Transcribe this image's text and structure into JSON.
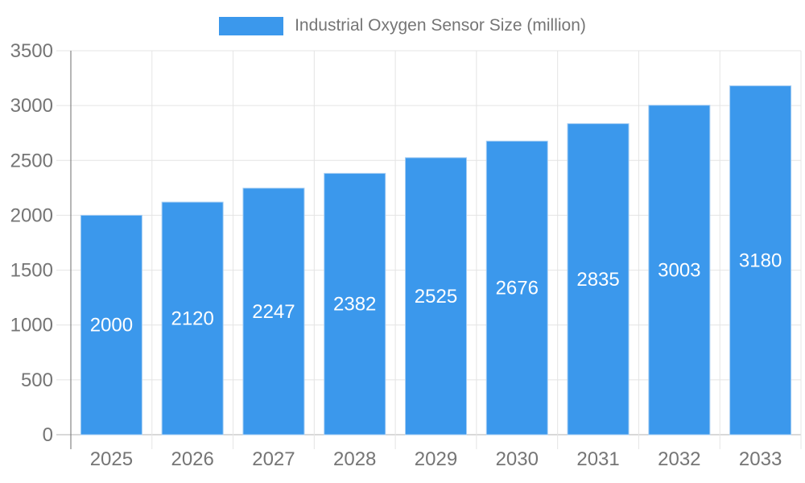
{
  "legend": {
    "label": "Industrial Oxygen Sensor Size (million)",
    "swatch_color": "#3B98EC"
  },
  "chart_data": {
    "type": "bar",
    "title": "Industrial Oxygen Sensor Size (million)",
    "series_name": "Industrial Oxygen Sensor Size (million)",
    "categories": [
      "2025",
      "2026",
      "2027",
      "2028",
      "2029",
      "2030",
      "2031",
      "2032",
      "2033"
    ],
    "values": [
      2000,
      2120,
      2247,
      2382,
      2525,
      2676,
      2835,
      3003,
      3180
    ],
    "bar_labels": [
      "2000",
      "2120",
      "2247",
      "2382",
      "2525",
      "2676",
      "2835",
      "3003",
      "3180"
    ],
    "xlabel": "",
    "ylabel": "",
    "ylim": [
      0,
      3500
    ],
    "ytick_step": 500,
    "ytick_labels": [
      "0",
      "500",
      "1000",
      "1500",
      "2000",
      "2500",
      "3000",
      "3500"
    ],
    "grid": true,
    "legend_position": "top",
    "colors": {
      "bar_fill": "#3B98EC",
      "bar_border": "#A5CDF3",
      "bar_label_text": "#FFFFFF",
      "axis_text": "#757575",
      "gridline": "#E4E4E4",
      "baseline": "#B3B3B3",
      "axis_line": "#6E6E6E",
      "background": "#FFFFFF"
    }
  }
}
